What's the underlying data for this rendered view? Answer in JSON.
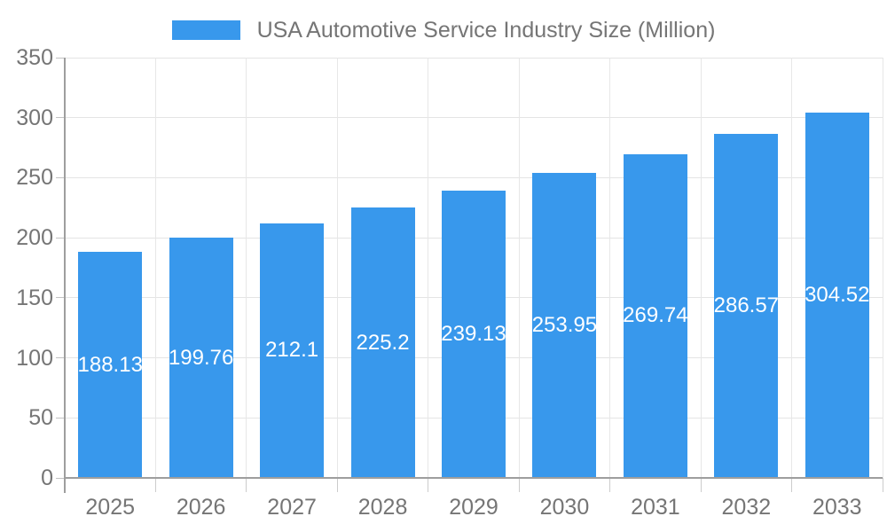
{
  "legend": {
    "label": "USA Automotive Service Industry Size (Million)"
  },
  "chart_data": {
    "type": "bar",
    "title": "USA Automotive Service Industry Size (Million)",
    "categories": [
      "2025",
      "2026",
      "2027",
      "2028",
      "2029",
      "2030",
      "2031",
      "2032",
      "2033"
    ],
    "values": [
      188.13,
      199.76,
      212.1,
      225.2,
      239.13,
      253.95,
      269.74,
      286.57,
      304.52
    ],
    "value_labels": [
      "188.13",
      "199.76",
      "212.1",
      "225.2",
      "239.13",
      "253.95",
      "269.74",
      "286.57",
      "304.52"
    ],
    "xlabel": "",
    "ylabel": "",
    "ylim": [
      0,
      350
    ],
    "yticks": [
      0,
      50,
      100,
      150,
      200,
      250,
      300,
      350
    ],
    "grid": "horizontal and vertical gridlines on",
    "legend_position": "top-center",
    "bar_color": "#3898ec",
    "value_label_color": "#ffffff",
    "axis_text_color": "#757575",
    "gridline_color": "#e4e4e4",
    "axis_line_color": "#9e9e9e"
  }
}
